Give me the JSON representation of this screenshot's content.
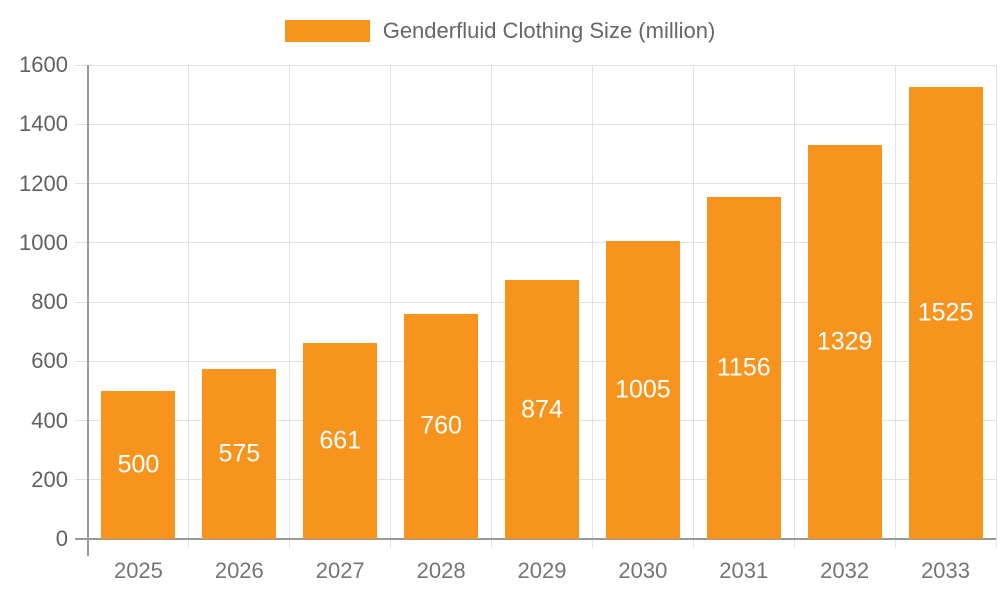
{
  "legend": {
    "label": "Genderfluid Clothing Size (million)"
  },
  "chart_data": {
    "type": "bar",
    "title": "Genderfluid Clothing Size (million)",
    "categories": [
      "2025",
      "2026",
      "2027",
      "2028",
      "2029",
      "2030",
      "2031",
      "2032",
      "2033"
    ],
    "values": [
      500,
      575,
      661,
      760,
      874,
      1005,
      1156,
      1329,
      1525
    ],
    "xlabel": "",
    "ylabel": "",
    "ylim": [
      0,
      1600
    ],
    "ytick_interval": 200,
    "yticks": [
      0,
      200,
      400,
      600,
      800,
      1000,
      1200,
      1400,
      1600
    ],
    "grid": true,
    "legend_position": "top-center",
    "bar_labels_inside": true,
    "colors": {
      "bar": "#F7941E",
      "bar_label": "#FFFFFF",
      "grid": "#E2E2E2",
      "axis": "#999999",
      "y_tick_text": "#616161",
      "x_tick_text": "#757575",
      "legend_text": "#666666",
      "background": "#FFFFFF"
    }
  }
}
